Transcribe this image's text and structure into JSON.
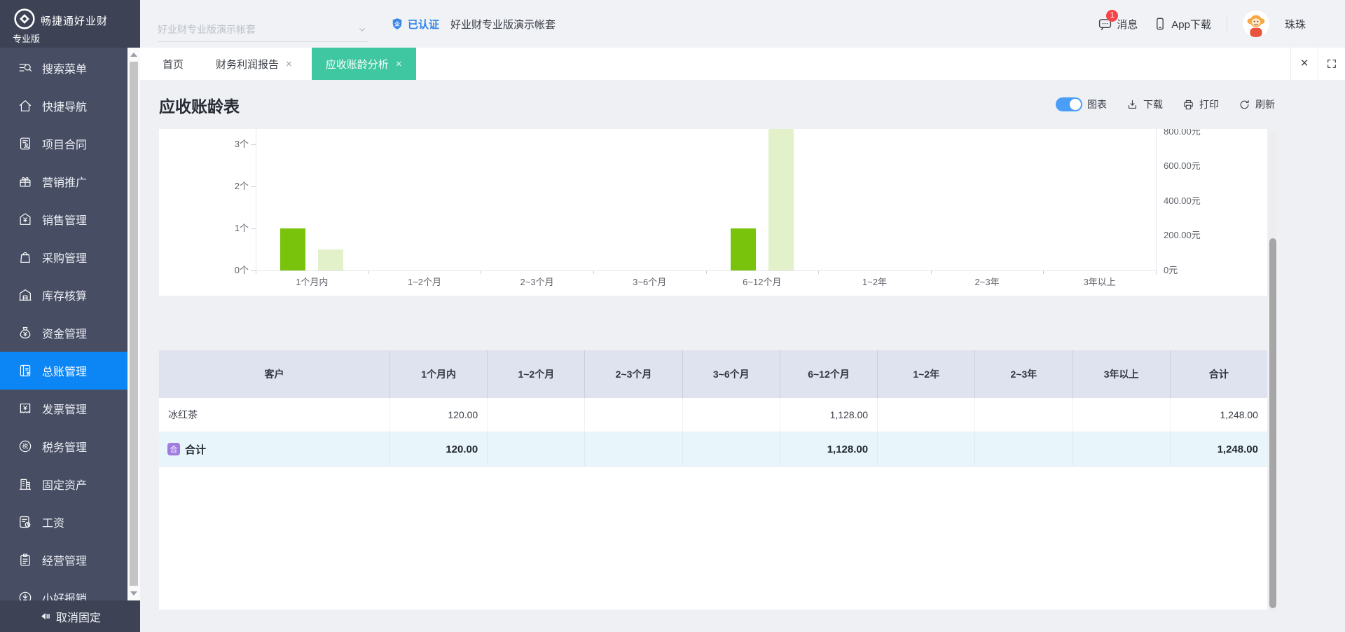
{
  "brand": {
    "name": "畅捷通好业财",
    "edition": "专业版"
  },
  "sidebar": {
    "items": [
      {
        "icon": "search-menu",
        "label": "搜索菜单",
        "active": false
      },
      {
        "icon": "quick-nav",
        "label": "快捷导航",
        "active": false
      },
      {
        "icon": "project-contract",
        "label": "项目合同",
        "active": false
      },
      {
        "icon": "marketing",
        "label": "营销推广",
        "active": false
      },
      {
        "icon": "sales",
        "label": "销售管理",
        "active": false
      },
      {
        "icon": "purchase",
        "label": "采购管理",
        "active": false
      },
      {
        "icon": "inventory",
        "label": "库存核算",
        "active": false
      },
      {
        "icon": "funds",
        "label": "资金管理",
        "active": false
      },
      {
        "icon": "ledger",
        "label": "总账管理",
        "active": true
      },
      {
        "icon": "invoice",
        "label": "发票管理",
        "active": false
      },
      {
        "icon": "tax",
        "label": "税务管理",
        "active": false
      },
      {
        "icon": "fixed-assets",
        "label": "固定资产",
        "active": false
      },
      {
        "icon": "salary",
        "label": "工资",
        "active": false
      },
      {
        "icon": "operations",
        "label": "经营管理",
        "active": false
      },
      {
        "icon": "reimburse",
        "label": "小好报销",
        "active": false
      }
    ],
    "unpin_label": "取消固定"
  },
  "topbar": {
    "account_selector_value": "好业财专业版演示帐套",
    "verified_label": "已认证",
    "account_name": "好业财专业版演示帐套",
    "messages_label": "消息",
    "messages_badge": "1",
    "app_download_label": "App下载",
    "username": "珠珠"
  },
  "tabs": [
    {
      "label": "首页",
      "active": false,
      "closable": false
    },
    {
      "label": "财务利润报告",
      "active": false,
      "closable": true
    },
    {
      "label": "应收账龄分析",
      "active": true,
      "closable": true
    }
  ],
  "page": {
    "title": "应收账龄表",
    "toolbar": {
      "chart_toggle_label": "图表",
      "chart_toggle_on": true,
      "download_label": "下载",
      "print_label": "打印",
      "refresh_label": "刷新"
    }
  },
  "chart_data": {
    "type": "bar",
    "categories": [
      "1个月内",
      "1~2个月",
      "2~3个月",
      "3~6个月",
      "6~12个月",
      "1~2年",
      "2~3年",
      "3年以上"
    ],
    "series": [
      {
        "unit": "个",
        "axis": "left",
        "color": "#79c30d",
        "values": [
          1,
          0,
          0,
          0,
          1,
          0,
          0,
          0
        ]
      },
      {
        "unit": "元",
        "axis": "right",
        "color": "#e3f1ca",
        "values": [
          120,
          0,
          0,
          0,
          1128,
          0,
          0,
          0
        ]
      }
    ],
    "left_axis": {
      "unit": "个",
      "tick_values": [
        3,
        2,
        1,
        0
      ],
      "tick_labels": [
        "3个",
        "2个",
        "1个",
        "0个"
      ],
      "max": 3
    },
    "right_axis": {
      "unit": "元",
      "tick_values": [
        800,
        600,
        400,
        200,
        0
      ],
      "tick_labels": [
        "800.00元",
        "600.00元",
        "400.00元",
        "200.00元",
        "0元"
      ]
    },
    "grid": false,
    "legend_position": "none-visible"
  },
  "table": {
    "columns": [
      "客户",
      "1个月内",
      "1~2个月",
      "2~3个月",
      "3~6个月",
      "6~12个月",
      "1~2年",
      "2~3年",
      "3年以上",
      "合计"
    ],
    "rows": [
      {
        "customer": "冰红茶",
        "values": [
          "120.00",
          "",
          "",
          "",
          "1,128.00",
          "",
          "",
          "",
          "1,248.00"
        ]
      }
    ],
    "total": {
      "label": "合计",
      "values": [
        "120.00",
        "",
        "",
        "",
        "1,128.00",
        "",
        "",
        "",
        "1,248.00"
      ]
    }
  },
  "colors": {
    "sidebar_bg": "#474e63",
    "sidebar_active_blue": "#0c86f5",
    "active_tab_green": "#3ec7a0",
    "bar_dark_green": "#79c30d",
    "bar_light_green": "#e3f1ca",
    "badge_red": "#f5454c",
    "verified_blue": "#2f84e8",
    "table_header_bg": "#dfe3ef",
    "total_row_bg": "#e8f6fb",
    "total_icon_purple": "#a07ce0"
  }
}
